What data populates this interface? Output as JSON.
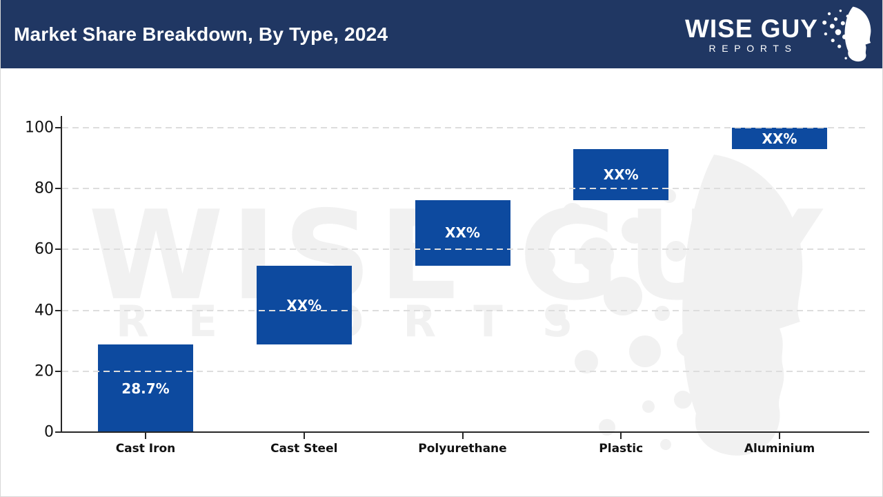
{
  "header": {
    "title": "Market Share Breakdown, By Type, 2024",
    "bg_color": "#203763",
    "brand": {
      "line1": "WISE GUY",
      "line2": "REPORTS"
    }
  },
  "watermark": {
    "line1": "WISE GUY",
    "line2": "REPORTS"
  },
  "chart_data": {
    "type": "bar",
    "subtype": "waterfall",
    "title": "Market Share Breakdown, By Type, 2024",
    "categories": [
      "Cast Iron",
      "Cast Steel",
      "Polyurethane",
      "Plastic",
      "Aluminium"
    ],
    "segments": [
      {
        "category": "Cast Iron",
        "start": 0,
        "end": 28.7,
        "label": "28.7%"
      },
      {
        "category": "Cast Steel",
        "start": 28.7,
        "end": 54.7,
        "label": "XX%"
      },
      {
        "category": "Polyurethane",
        "start": 54.7,
        "end": 76.3,
        "label": "XX%"
      },
      {
        "category": "Plastic",
        "start": 76.3,
        "end": 92.9,
        "label": "XX%"
      },
      {
        "category": "Aluminium",
        "start": 92.9,
        "end": 100,
        "label": "XX%"
      }
    ],
    "xlabel": "",
    "ylabel": "",
    "ylim": [
      0,
      100
    ],
    "yticks": [
      0,
      20,
      40,
      60,
      80,
      100
    ],
    "grid": "dashed-horizontal",
    "legend": "none",
    "bar_color": "#0d4a9f",
    "bar_label_color": "#ffffff"
  }
}
